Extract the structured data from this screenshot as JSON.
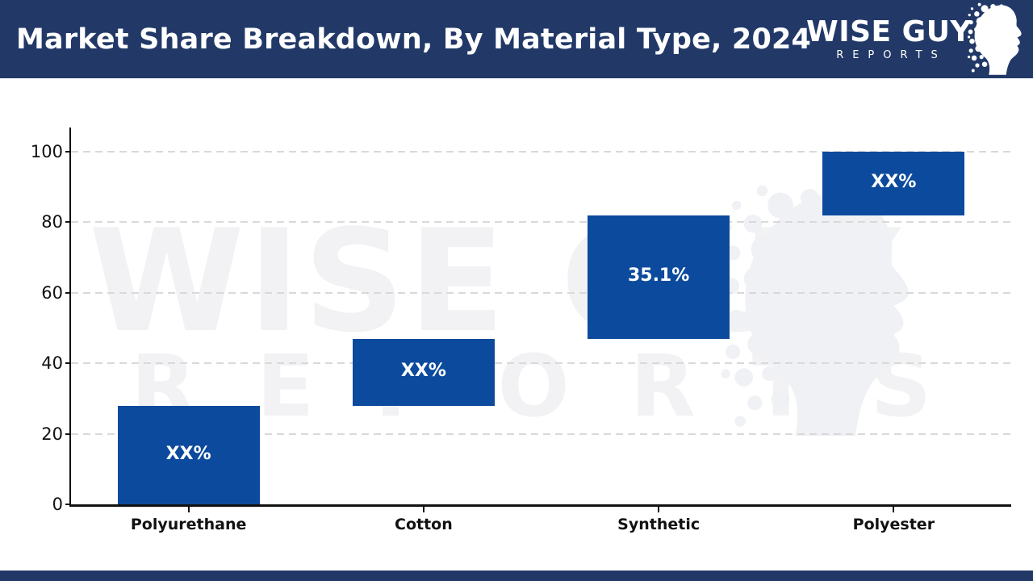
{
  "header": {
    "title": "Market Share Breakdown, By Material Type, 2024",
    "bg_color": "#223968",
    "logo": {
      "primary": "WISE GUY",
      "secondary": "REPORTS",
      "icon": "head-profile-dots-icon"
    }
  },
  "watermark": {
    "primary": "WISE GUY",
    "secondary": "REPORTS"
  },
  "footer": {
    "bg_color": "#223968"
  },
  "chart_data": {
    "type": "bar",
    "subtype": "floating-waterfall",
    "title": "Market Share Breakdown, By Material Type, 2024",
    "categories": [
      "Polyurethane",
      "Cotton",
      "Synthetic",
      "Polyester"
    ],
    "bars": [
      {
        "category": "Polyurethane",
        "start": 0,
        "end": 28,
        "label": "XX%"
      },
      {
        "category": "Cotton",
        "start": 28,
        "end": 46.8,
        "label": "XX%"
      },
      {
        "category": "Synthetic",
        "start": 46.8,
        "end": 81.9,
        "label": "35.1%"
      },
      {
        "category": "Polyester",
        "start": 81.9,
        "end": 100,
        "label": "XX%"
      }
    ],
    "yticks": [
      0,
      20,
      40,
      60,
      80,
      100
    ],
    "ylim": [
      0,
      100
    ],
    "xlabel": "",
    "ylabel": "",
    "grid": "dashed-horizontal",
    "legend": "none",
    "bar_color": "#0c4a9d",
    "bar_label_color": "#ffffff",
    "grid_color": "#d9d9d9",
    "axis_color": "#111111"
  }
}
